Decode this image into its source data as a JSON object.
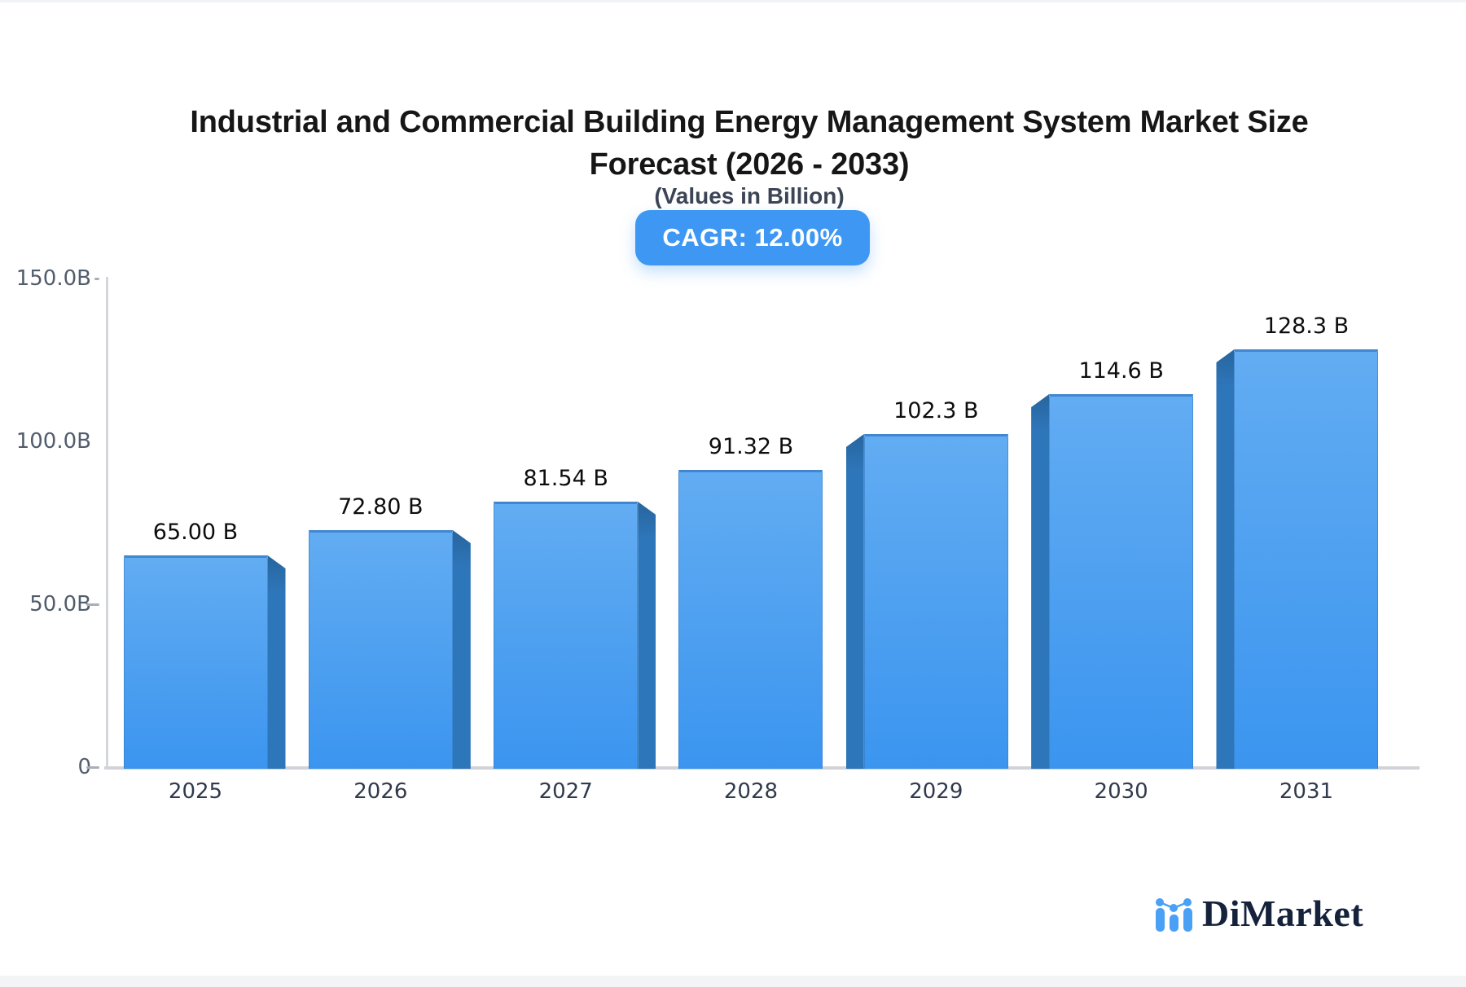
{
  "header": {
    "title_line1": "Industrial and Commercial Building Energy Management System Market Size",
    "title_line2": "Forecast (2026 - 2033)",
    "subtitle": "(Values in Billion)",
    "cagr_label": "CAGR: 12.00%"
  },
  "chart_data": {
    "type": "bar",
    "title": "Industrial and Commercial Building Energy Management System Market Size Forecast (2026 - 2033)",
    "subtitle": "(Values in Billion)",
    "cagr_percent": 12.0,
    "categories": [
      "2025",
      "2026",
      "2027",
      "2028",
      "2029",
      "2030",
      "2031"
    ],
    "values": [
      65.0,
      72.8,
      81.54,
      91.32,
      102.3,
      114.6,
      128.3
    ],
    "value_labels": [
      "65.00 B",
      "72.80 B",
      "81.54 B",
      "91.32 B",
      "102.3 B",
      "114.6 B",
      "128.3 B"
    ],
    "ylim": [
      0,
      150
    ],
    "y_ticks": [
      {
        "label": "150.0B",
        "value": 150
      },
      {
        "label": "100.0B",
        "value": 100
      },
      {
        "label": "50.0B",
        "value": 50
      },
      {
        "label": "0",
        "value": 0
      }
    ],
    "grid": "off",
    "legend": "none",
    "bar_style": "3d-perspective"
  },
  "footer": {
    "brand": "DiMarket"
  },
  "colors": {
    "badge_bg": "#3E98F3",
    "bar_face_top": "#62ACF2",
    "bar_face_bottom": "#3B95EF",
    "bar_face_border": "#4187CF",
    "bar_side": "#2E76BA",
    "bar_side_dark": "#27659E",
    "axis_line": "#D5D6DB",
    "logo_blue": "#4AA0F5",
    "brand_navy": "#15223C"
  }
}
